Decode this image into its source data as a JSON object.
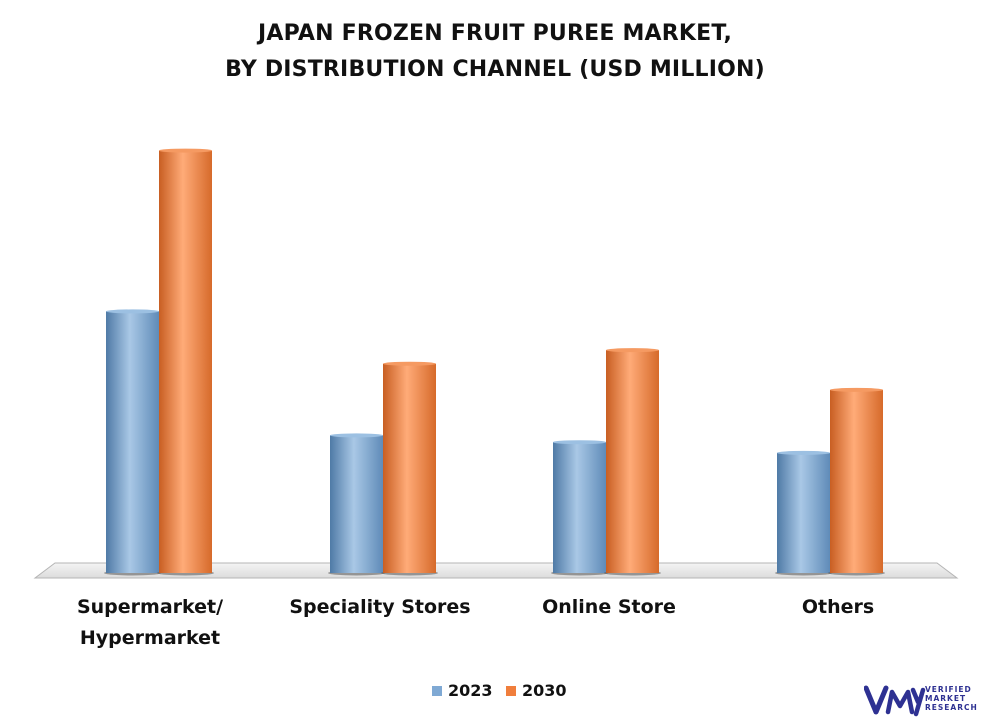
{
  "chart_data": {
    "type": "bar",
    "title_lines": [
      "JAPAN FROZEN FRUIT PUREE MARKET,",
      "BY DISTRIBUTION CHANNEL (USD MILLION)"
    ],
    "categories": [
      [
        "Supermarket/",
        "Hypermarket"
      ],
      [
        "Speciality Stores"
      ],
      [
        "Online Store"
      ],
      [
        "Others"
      ]
    ],
    "series": [
      {
        "name": "2023",
        "values": [
          270,
          142,
          135,
          124
        ]
      },
      {
        "name": "2030",
        "values": [
          436,
          216,
          230,
          189
        ]
      }
    ],
    "ylim": [
      0,
      450
    ],
    "grid": false,
    "legend_position": "bottom-center",
    "colors": {
      "2023": "#7fa9d4",
      "2030": "#f07e3c"
    }
  },
  "logo": {
    "lines": [
      "VERIFIED",
      "MARKET",
      "RESEARCH"
    ],
    "mark": "vmr-logo-icon"
  }
}
